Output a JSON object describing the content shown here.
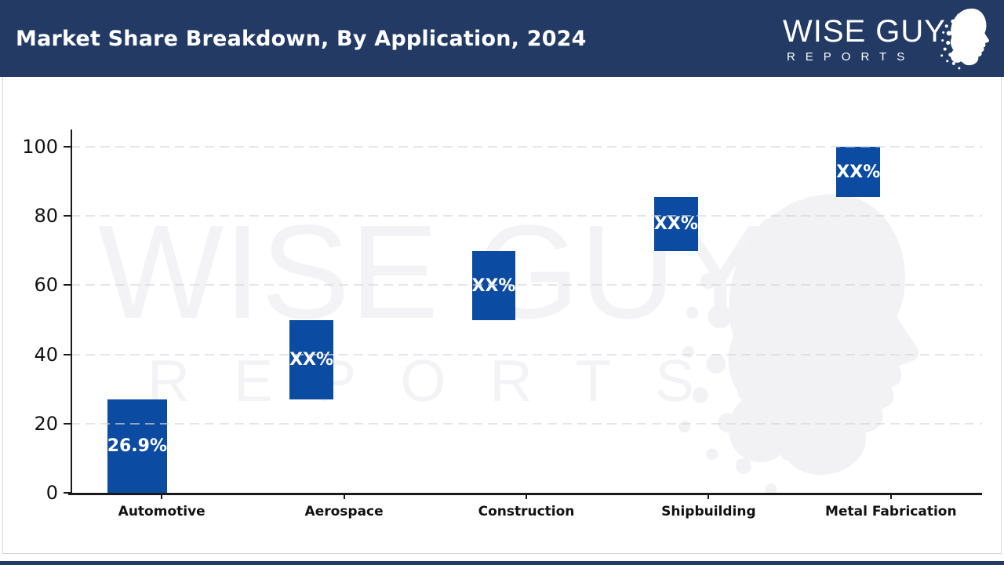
{
  "header": {
    "title": "Market Share Breakdown, By Application, 2024",
    "bg_color": "#223a64",
    "logo": {
      "line1": "WISE GUY",
      "line2": "REPORTS"
    }
  },
  "watermark": {
    "line1": "WISE GUY",
    "line2": "REPORTS"
  },
  "footer": {
    "bg_color": "#223a64"
  },
  "chart_data": {
    "type": "bar",
    "subtype": "waterfall",
    "title": "Market Share Breakdown, By Application, 2024",
    "categories": [
      "Automotive",
      "Aerospace",
      "Construction",
      "Shipbuilding",
      "Metal Fabrication"
    ],
    "segments": [
      {
        "category": "Automotive",
        "start": 0,
        "end": 26.9,
        "label": "26.9%"
      },
      {
        "category": "Aerospace",
        "start": 26.9,
        "end": 49.8,
        "label": "XX%"
      },
      {
        "category": "Construction",
        "start": 49.8,
        "end": 69.8,
        "label": "XX%"
      },
      {
        "category": "Shipbuilding",
        "start": 69.8,
        "end": 85.5,
        "label": "XX%"
      },
      {
        "category": "Metal Fabrication",
        "start": 85.5,
        "end": 100,
        "label": "XX%"
      }
    ],
    "y_ticks": [
      0,
      20,
      40,
      60,
      80,
      100
    ],
    "ylim": [
      0,
      105
    ],
    "xlabel": "",
    "ylabel": "",
    "grid": "dashed-horizontal",
    "legend": "none",
    "bar_color": "#0b4ba1",
    "bar_label_color": "#ffffff"
  }
}
